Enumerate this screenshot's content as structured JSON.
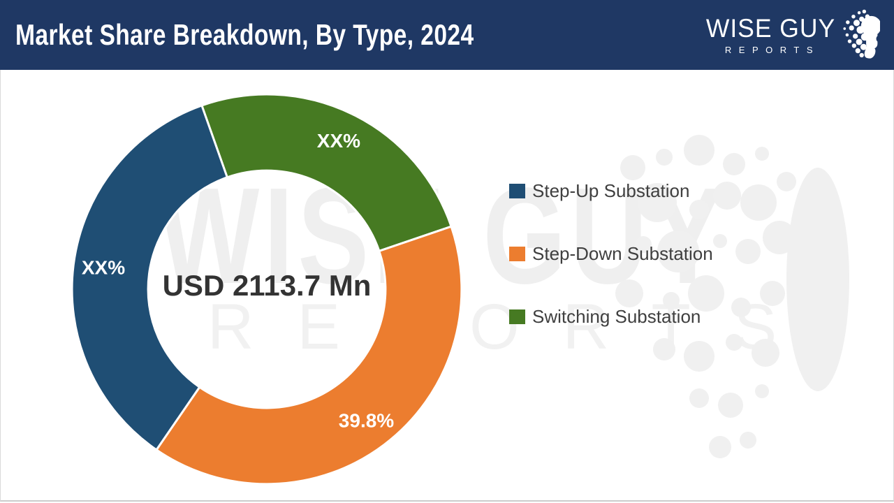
{
  "header": {
    "title": "Market Share Breakdown, By Type, 2024",
    "brand": {
      "name": "WISE GUY",
      "sub": "REPORTS"
    }
  },
  "chart_data": {
    "type": "donut",
    "title": "Market Share Breakdown, By Type, 2024",
    "center_label": "USD 2113.7 Mn",
    "start_angle_deg": -19.5,
    "legend_position": "right",
    "segments": [
      {
        "name": "Switching Substation",
        "display_label": "XX%",
        "percent": 25.2,
        "color": "#467a22"
      },
      {
        "name": "Step-Down Substation",
        "display_label": "39.8%",
        "percent": 39.8,
        "color": "#ec7d2f"
      },
      {
        "name": "Step-Up Substation",
        "display_label": "XX%",
        "percent": 35.0,
        "color": "#1f4e74"
      }
    ]
  },
  "legend": {
    "items": [
      {
        "label": "Step-Up Substation",
        "color": "#1f4e74"
      },
      {
        "label": "Step-Down Substation",
        "color": "#ec7d2f"
      },
      {
        "label": "Switching Substation",
        "color": "#467a22"
      }
    ]
  },
  "watermark": {
    "line1": "WISE GUY",
    "line2": "REPORTS"
  },
  "colors": {
    "header_background": "#1f3864",
    "step_up_blue": "#1f4e74",
    "step_down_orange": "#ec7d2f",
    "switching_green": "#467a22",
    "center_text": "#333333",
    "legend_text": "#3f3f3f"
  }
}
